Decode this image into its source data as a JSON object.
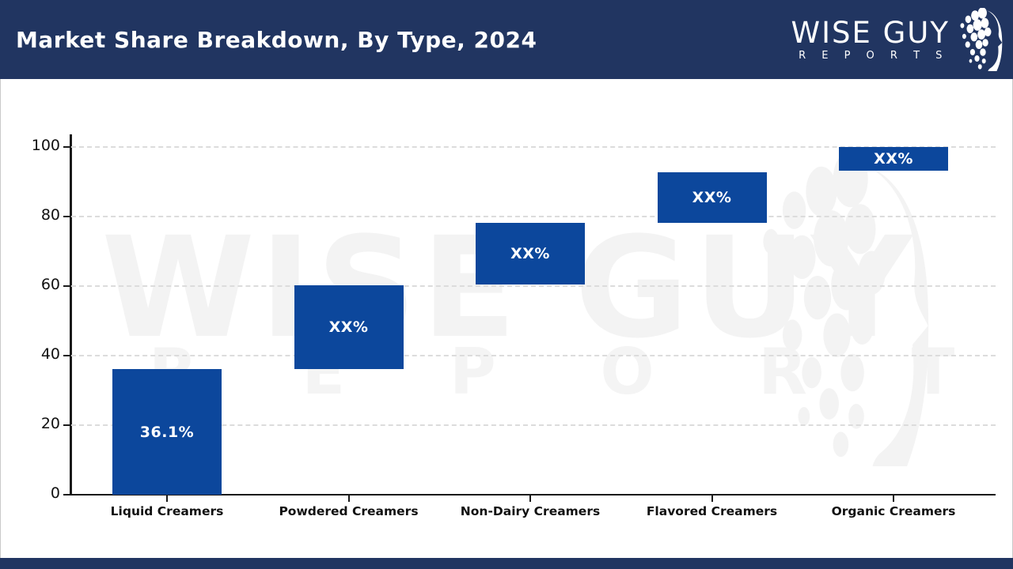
{
  "header": {
    "title": "Market Share Breakdown, By Type, 2024",
    "brand": {
      "line1": "WISE GUY",
      "line2": "R E P O R T S"
    }
  },
  "watermark": {
    "line1": "WISE GUY",
    "line2": "R E P O R T S"
  },
  "colors": {
    "header_bg": "#213561",
    "footer_bg": "#213561",
    "bar_blue": "#0c479c",
    "grid_gray": "#dcdcdc",
    "axis_black": "#1a1a1a",
    "watermark_gray": "#f3f3f3",
    "label_white": "#ffffff"
  },
  "chart_data": {
    "type": "bar",
    "subtype": "floating-waterfall",
    "title": "Market Share Breakdown, By Type, 2024",
    "categories": [
      "Liquid Creamers",
      "Powdered Creamers",
      "Non-Dairy Creamers",
      "Flavored Creamers",
      "Organic Creamers"
    ],
    "segments": [
      {
        "category": "Liquid Creamers",
        "start": 0,
        "end": 36.1,
        "label": "36.1%"
      },
      {
        "category": "Powdered Creamers",
        "start": 36.1,
        "end": 60.2,
        "label": "XX%"
      },
      {
        "category": "Non-Dairy Creamers",
        "start": 60.4,
        "end": 78.1,
        "label": "XX%"
      },
      {
        "category": "Flavored Creamers",
        "start": 78.2,
        "end": 92.8,
        "label": "XX%"
      },
      {
        "category": "Organic Creamers",
        "start": 93.1,
        "end": 100.1,
        "label": "XX%"
      }
    ],
    "yticks": [
      0,
      20,
      40,
      60,
      80,
      100
    ],
    "ylim": [
      0,
      104
    ],
    "xlabel": "",
    "ylabel": "",
    "grid": true,
    "grid_style": "dashed",
    "legend": "none",
    "bar_color": "#0c479c",
    "bar_label_color": "#ffffff"
  }
}
